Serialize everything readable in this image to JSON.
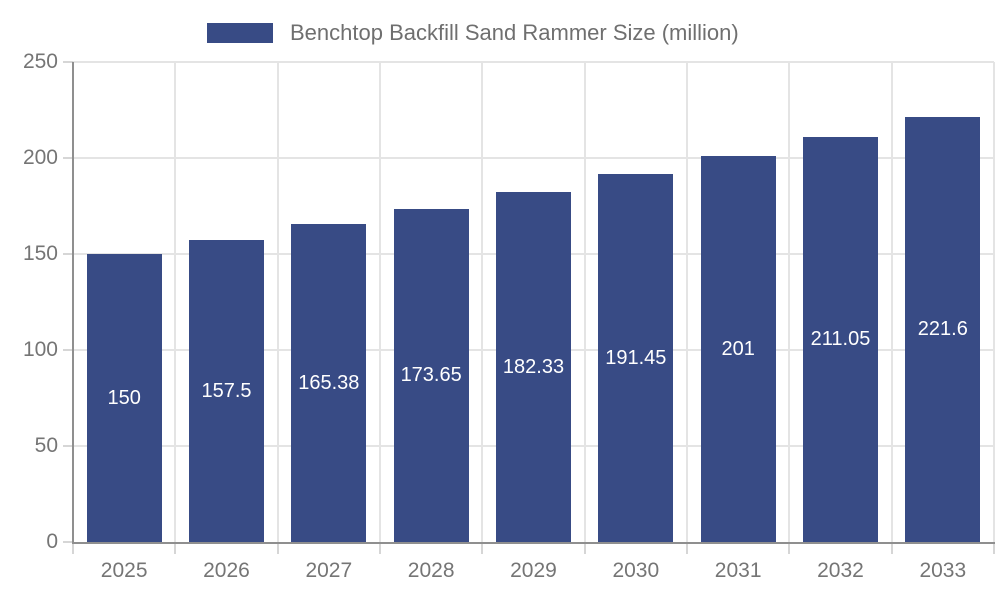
{
  "chart_data": {
    "type": "bar",
    "title": "Benchtop Backfill Sand Rammer Size (million)",
    "legend": {
      "label": "Benchtop Backfill Sand Rammer Size (million)",
      "position": "top"
    },
    "categories": [
      "2025",
      "2026",
      "2027",
      "2028",
      "2029",
      "2030",
      "2031",
      "2032",
      "2033"
    ],
    "series": [
      {
        "name": "Benchtop Backfill Sand Rammer Size (million)",
        "values": [
          150,
          157.5,
          165.38,
          173.65,
          182.33,
          191.45,
          201,
          211.05,
          221.6
        ],
        "value_labels": [
          "150",
          "157.5",
          "165.38",
          "173.65",
          "182.33",
          "191.45",
          "201",
          "211.05",
          "221.6"
        ]
      }
    ],
    "xlabel": "",
    "ylabel": "",
    "ylim": [
      0,
      250
    ],
    "yticks": [
      0,
      50,
      100,
      150,
      200,
      250
    ],
    "grid": true,
    "colors": {
      "bar": "#384B85",
      "grid_line": "#e4e4e4",
      "axis_line": "#8f8f8f",
      "tick_mark": "#d6d6d6",
      "tick_label": "#757575",
      "legend_text": "#6f6f6f",
      "value_label": "#ffffff",
      "background": "#ffffff"
    }
  }
}
